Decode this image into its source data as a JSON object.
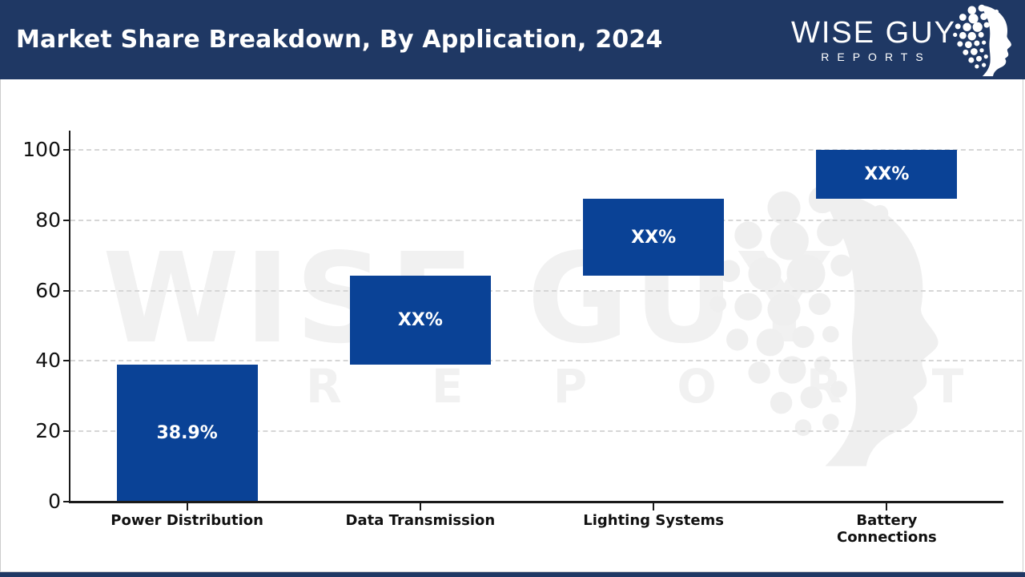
{
  "header": {
    "title": "Market Share Breakdown, By Application, 2024",
    "bg_color": "#1f3864",
    "logo": {
      "line1": "WISE GUY",
      "line2": "REPORTS"
    }
  },
  "watermark": {
    "line1": "WISE GUY",
    "line2": "R E P O R T S"
  },
  "chart_data": {
    "type": "bar",
    "subtype": "waterfall",
    "title": "Market Share Breakdown, By Application, 2024",
    "categories": [
      "Power Distribution",
      "Data Transmission",
      "Lighting Systems",
      "Battery Connections"
    ],
    "category_lines": [
      [
        "Power Distribution"
      ],
      [
        "Data Transmission"
      ],
      [
        "Lighting Systems"
      ],
      [
        "Battery",
        "Connections"
      ]
    ],
    "segments": [
      {
        "category": "Power Distribution",
        "start": 0,
        "end": 38.9,
        "label": "38.9%"
      },
      {
        "category": "Data Transmission",
        "start": 38.9,
        "end": 64.2,
        "label": "XX%"
      },
      {
        "category": "Lighting Systems",
        "start": 64.2,
        "end": 86.1,
        "label": "XX%"
      },
      {
        "category": "Battery Connections",
        "start": 86.1,
        "end": 100,
        "label": "XX%"
      }
    ],
    "y_ticks": [
      0,
      20,
      40,
      60,
      80,
      100
    ],
    "ylim": [
      0,
      100
    ],
    "xlabel": "",
    "ylabel": "",
    "grid": "horizontal-dashed",
    "legend": "none",
    "bar_color": "#0a4296",
    "bar_label_color": "#ffffff",
    "axis_color": "#1a1a1a",
    "gridline_color": "#d6d6d6"
  }
}
